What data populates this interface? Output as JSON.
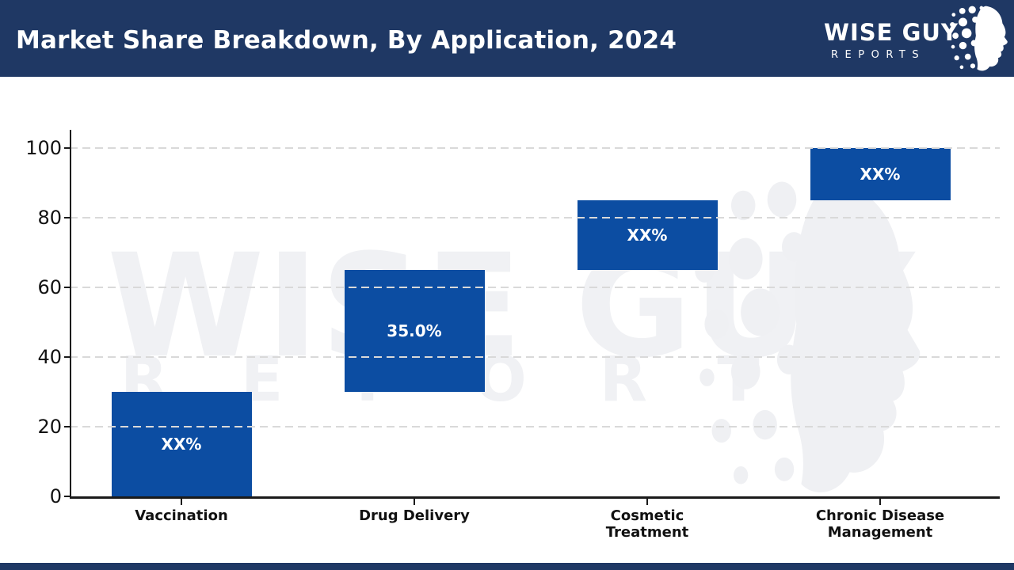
{
  "header": {
    "title": "Market Share Breakdown, By Application, 2024",
    "logo": {
      "wordmark": "WISE GUY",
      "subtext": "REPORTS"
    }
  },
  "watermark": {
    "wordmark": "WISE GUY",
    "subtext": "REPORTS"
  },
  "chart_data": {
    "type": "bar",
    "subtype": "floating-waterfall-segments",
    "title": "Market Share Breakdown, By Application, 2024",
    "categories": [
      "Vaccination",
      "Drug Delivery",
      "Cosmetic Treatment",
      "Chronic Disease Management"
    ],
    "segments": [
      {
        "category": "Vaccination",
        "start": 0,
        "end": 30,
        "label": "XX%"
      },
      {
        "category": "Drug Delivery",
        "start": 30,
        "end": 65,
        "label": "35.0%"
      },
      {
        "category": "Cosmetic Treatment",
        "start": 65,
        "end": 85,
        "label": "XX%"
      },
      {
        "category": "Chronic Disease Management",
        "start": 85,
        "end": 100,
        "label": "XX%"
      }
    ],
    "values_pct": [
      30,
      35,
      20,
      15
    ],
    "yticks": [
      0,
      20,
      40,
      60,
      80,
      100
    ],
    "ylim": [
      0,
      105
    ],
    "xlabel": "",
    "ylabel": "",
    "grid": "horizontal-dashed",
    "grid_above_bars": true,
    "legend": "none",
    "colors": {
      "bar": "#0c4da2",
      "bar_label": "#ffffff",
      "grid": "#d9d9d9",
      "axis": "#1a1a1a",
      "tick_label": "#111111",
      "header_bg": "#1f3864",
      "footer_bg": "#1f3864",
      "watermark": "#f0f1f4"
    }
  }
}
